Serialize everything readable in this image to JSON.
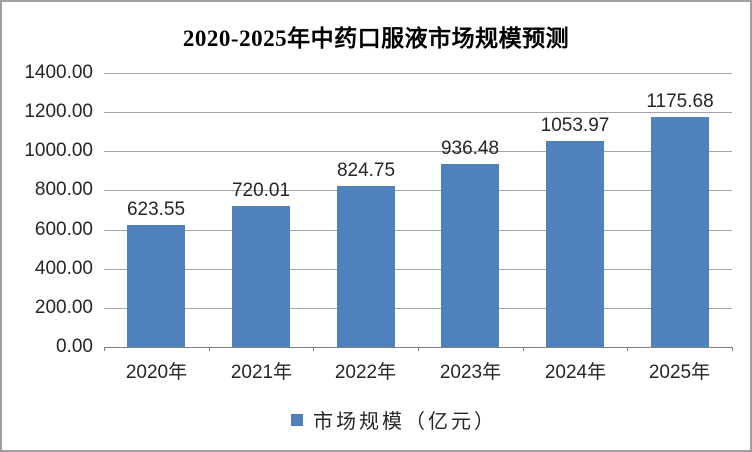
{
  "chart_data": {
    "type": "bar",
    "title": "2020-2025年中药口服液市场规模预测",
    "categories": [
      "2020年",
      "2021年",
      "2022年",
      "2023年",
      "2024年",
      "2025年"
    ],
    "series": [
      {
        "name": "市场规模（亿元）",
        "values": [
          623.55,
          720.01,
          824.75,
          936.48,
          1053.97,
          1175.68
        ]
      }
    ],
    "data_labels": [
      "623.55",
      "720.01",
      "824.75",
      "936.48",
      "1053.97",
      "1175.68"
    ],
    "xlabel": "",
    "ylabel": "",
    "ylim": [
      0,
      1400
    ],
    "ytick_step": 200,
    "ytick_labels": [
      "0.00",
      "200.00",
      "400.00",
      "600.00",
      "800.00",
      "1000.00",
      "1200.00",
      "1400.00"
    ],
    "grid": true,
    "legend_position": "bottom",
    "colors": {
      "bar": "#4F81BD",
      "gridline": "#A6A6A6",
      "axis": "#808080",
      "text": "#262626",
      "title": "#000000",
      "frame_border": "#9E9E9E",
      "background": "#FFFFFF"
    }
  },
  "legend": {
    "label": "市场规模（亿元）"
  }
}
